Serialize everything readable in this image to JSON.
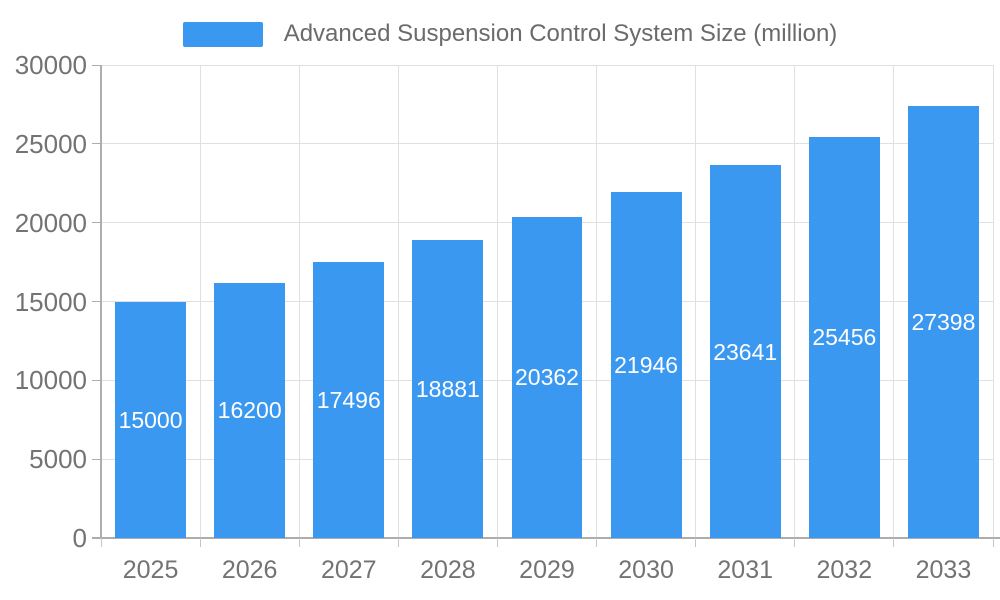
{
  "legend": {
    "label": "Advanced Suspension Control System Size (million)"
  },
  "chart_data": {
    "type": "bar",
    "title": "Advanced Suspension Control System Size (million)",
    "categories": [
      "2025",
      "2026",
      "2027",
      "2028",
      "2029",
      "2030",
      "2031",
      "2032",
      "2033"
    ],
    "values": [
      15000,
      16200,
      17496,
      18881,
      20362,
      21946,
      23641,
      25456,
      27398
    ],
    "xlabel": "",
    "ylabel": "",
    "ylim": [
      0,
      30000
    ],
    "yticks": [
      0,
      5000,
      10000,
      15000,
      20000,
      25000,
      30000
    ],
    "grid": true,
    "legend_position": "top",
    "value_label_position": "inside-center",
    "colors": {
      "bar": "#3B98F0",
      "bar_label": "#FFFFFF",
      "axis_line": "#ADADAD",
      "grid_line": "#E0E0E0",
      "x_tick": "#C6C6C6",
      "tick_label": "#737373",
      "legend_text": "#6B6B6B",
      "background": "#FFFFFF"
    }
  }
}
